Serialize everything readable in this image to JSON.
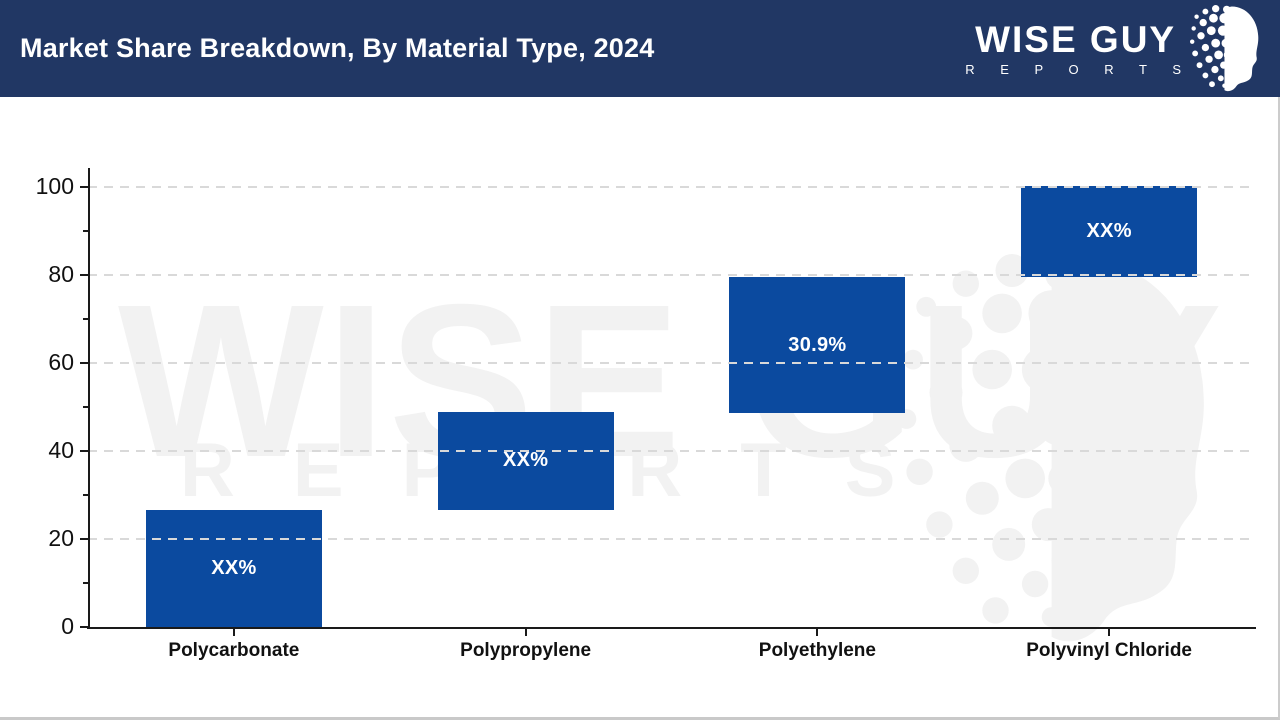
{
  "header": {
    "title": "Market Share Breakdown, By Material Type, 2024",
    "logo": {
      "line1": "WISE GUY",
      "line2": "R E P O R T S",
      "face_icon": "dotted-head-profile"
    }
  },
  "watermark": {
    "line1": "WISE GUY",
    "line2": "REPORTS",
    "face_icon": "dotted-head-profile"
  },
  "chart_data": {
    "type": "bar",
    "variant": "floating-waterfall",
    "title": "Market Share Breakdown, By Material Type, 2024",
    "xlabel": "",
    "ylabel": "",
    "categories": [
      "Polycarbonate",
      "Polypropylene",
      "Polyethylene",
      "Polyvinyl Chloride"
    ],
    "bars": [
      {
        "category": "Polycarbonate",
        "start": 0,
        "end": 26.5,
        "label": "XX%"
      },
      {
        "category": "Polypropylene",
        "start": 26.6,
        "end": 48.9,
        "label": "XX%"
      },
      {
        "category": "Polyethylene",
        "start": 48.6,
        "end": 79.5,
        "label": "30.9%"
      },
      {
        "category": "Polyvinyl Chloride",
        "start": 79.6,
        "end": 100.2,
        "label": "XX%"
      }
    ],
    "yticks": [
      0,
      20,
      40,
      60,
      80,
      100
    ],
    "minor_yticks": [
      10,
      30,
      50,
      70,
      90
    ],
    "ylim": [
      0,
      104
    ],
    "grid": "horizontal-dashed",
    "grid_over_bars": true,
    "legend": "none"
  },
  "colors": {
    "header_bg": "#213764",
    "bar_fill": "#0b4a9f",
    "bar_label": "#ffffff",
    "grid_line": "#d9d9d9",
    "axis_line": "#1a1a1a",
    "tick_label": "#111111",
    "watermark": "#f2f2f2",
    "background": "#ffffff"
  }
}
